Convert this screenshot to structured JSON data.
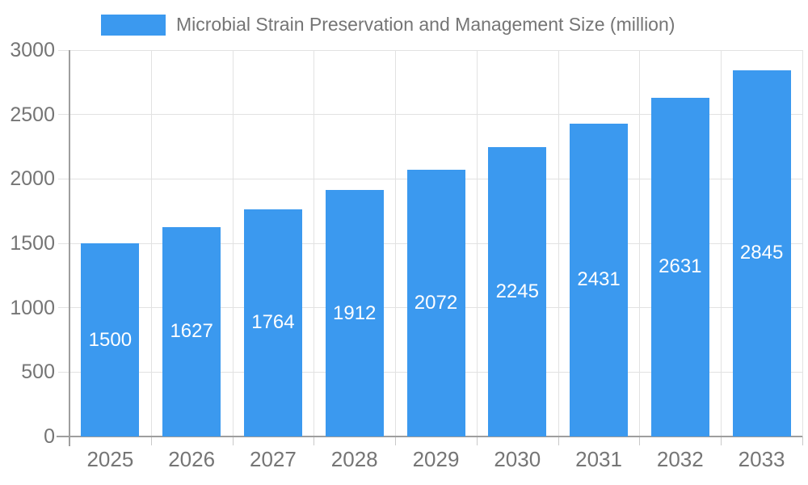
{
  "chart_data": {
    "type": "bar",
    "title": "Microbial Strain Preservation and Management Size (million)",
    "categories": [
      "2025",
      "2026",
      "2027",
      "2028",
      "2029",
      "2030",
      "2031",
      "2032",
      "2033"
    ],
    "series": [
      {
        "name": "Microbial Strain Preservation and Management Size (million)",
        "values": [
          1500,
          1627,
          1764,
          1912,
          2072,
          2245,
          2431,
          2631,
          2845
        ],
        "color": "#3b99ef"
      }
    ],
    "xlabel": "",
    "ylabel": "",
    "ylim": [
      0,
      3000
    ],
    "yticks": [
      0,
      500,
      1000,
      1500,
      2000,
      2500,
      3000
    ],
    "grid": {
      "horizontal": true,
      "vertical": true
    },
    "legend_position": "top-left",
    "value_labels": {
      "position": "center-of-bar",
      "color": "#ffffff"
    }
  },
  "colors": {
    "bar": "#3b99ef",
    "axis_line": "#9e9e9e",
    "gridline": "#e2e2e2",
    "tick": "#c9c9c9",
    "text": "#757575",
    "value_label_text": "#ffffff",
    "background": "#ffffff"
  }
}
